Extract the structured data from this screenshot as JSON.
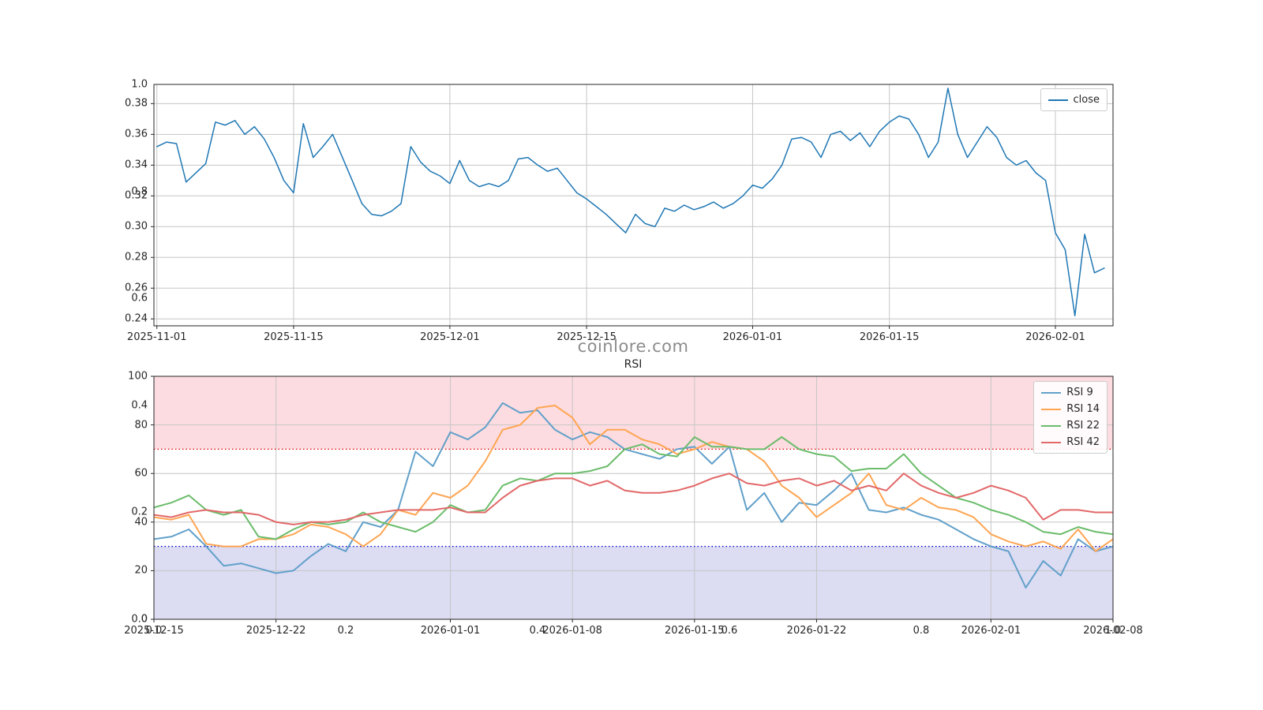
{
  "watermark": {
    "text": "coinlore.com"
  },
  "overlay_axis": {
    "y_ticks": [
      "1.0",
      "0.8",
      "0.6",
      "0.4",
      "0.2",
      "0.0"
    ],
    "x_ticks": [
      "0.0",
      "0.2",
      "0.4",
      "0.6",
      "0.8",
      "1.0"
    ]
  },
  "chart_data": [
    {
      "type": "line",
      "title": "",
      "xlabel": "",
      "ylabel": "",
      "grid": true,
      "legend_position": "upper right",
      "xlim": [
        -0.3,
        97.9
      ],
      "ylim": [
        0.2355,
        0.3925
      ],
      "x_tick_positions": [
        0,
        14,
        30,
        44,
        61,
        75,
        92
      ],
      "x_tick_labels": [
        "2025-11-01",
        "2025-11-15",
        "2025-12-01",
        "2025-12-15",
        "2026-01-01",
        "2026-01-15",
        "2026-02-01"
      ],
      "y_ticks": [
        0.24,
        0.26,
        0.28,
        0.3,
        0.32,
        0.34,
        0.36,
        0.38
      ],
      "y_tick_labels": [
        "0.24",
        "0.26",
        "0.28",
        "0.30",
        "0.32",
        "0.34",
        "0.36",
        "0.38"
      ],
      "series": [
        {
          "name": "close",
          "color": "#1f77b4",
          "width": 1.5,
          "values": [
            0.352,
            0.355,
            0.354,
            0.329,
            0.335,
            0.341,
            0.368,
            0.366,
            0.369,
            0.36,
            0.365,
            0.357,
            0.345,
            0.33,
            0.322,
            0.367,
            0.345,
            0.352,
            0.36,
            0.345,
            0.33,
            0.315,
            0.308,
            0.307,
            0.31,
            0.315,
            0.352,
            0.342,
            0.336,
            0.333,
            0.328,
            0.343,
            0.33,
            0.326,
            0.328,
            0.326,
            0.33,
            0.344,
            0.345,
            0.34,
            0.336,
            0.338,
            0.33,
            0.322,
            0.318,
            0.313,
            0.308,
            0.302,
            0.296,
            0.308,
            0.302,
            0.3,
            0.312,
            0.31,
            0.314,
            0.311,
            0.313,
            0.316,
            0.312,
            0.315,
            0.32,
            0.327,
            0.325,
            0.331,
            0.34,
            0.357,
            0.358,
            0.355,
            0.345,
            0.36,
            0.362,
            0.356,
            0.361,
            0.352,
            0.362,
            0.368,
            0.372,
            0.37,
            0.36,
            0.345,
            0.355,
            0.39,
            0.36,
            0.345,
            0.355,
            0.365,
            0.358,
            0.345,
            0.34,
            0.343,
            0.335,
            0.33,
            0.296,
            0.285,
            0.242,
            0.295,
            0.27,
            0.273
          ]
        }
      ]
    },
    {
      "type": "line",
      "title": "RSI",
      "xlabel": "",
      "ylabel": "",
      "grid": true,
      "legend_position": "upper right",
      "xlim": [
        0,
        55
      ],
      "ylim": [
        0,
        100
      ],
      "x_tick_positions": [
        0,
        7,
        17,
        24,
        31,
        38,
        48,
        55
      ],
      "x_tick_labels": [
        "2025-12-15",
        "2025-12-22",
        "2026-01-01",
        "2026-01-08",
        "2026-01-15",
        "2026-01-22",
        "2026-02-01",
        "2026-02-08"
      ],
      "y_ticks": [
        0,
        20,
        40,
        60,
        80,
        100
      ],
      "y_tick_labels": [
        "0",
        "20",
        "40",
        "60",
        "80",
        "100"
      ],
      "bands": [
        {
          "name": "overbought-band",
          "from": 70,
          "to": 100,
          "color": "#fcdce0"
        },
        {
          "name": "oversold-band",
          "from": 0,
          "to": 30,
          "color": "#dcdcf3"
        }
      ],
      "hlines": [
        {
          "name": "overbought-threshold-line",
          "y": 70,
          "color": "#dd0000"
        },
        {
          "name": "oversold-threshold-line",
          "y": 30,
          "color": "#0000cc"
        }
      ],
      "series": [
        {
          "name": "RSI 9",
          "color": "#62a0ca",
          "width": 2,
          "values": [
            33,
            34,
            37,
            30,
            22,
            23,
            21,
            19,
            20,
            26,
            31,
            28,
            40,
            38,
            45,
            69,
            63,
            77,
            74,
            79,
            89,
            85,
            86,
            78,
            74,
            77,
            75,
            70,
            68,
            66,
            70,
            71,
            64,
            71,
            45,
            52,
            40,
            48,
            47,
            53,
            60,
            45,
            44,
            46,
            43,
            41,
            37,
            33,
            30,
            28,
            13,
            24,
            18,
            33,
            28,
            30
          ]
        },
        {
          "name": "RSI 14",
          "color": "#ffa552",
          "width": 2,
          "values": [
            42,
            41,
            43,
            31,
            30,
            30,
            33,
            33,
            35,
            39,
            38,
            35,
            30,
            35,
            45,
            43,
            52,
            50,
            55,
            65,
            78,
            80,
            87,
            88,
            83,
            72,
            78,
            78,
            74,
            72,
            68,
            70,
            73,
            71,
            70,
            65,
            55,
            50,
            42,
            47,
            52,
            60,
            47,
            45,
            50,
            46,
            45,
            42,
            35,
            32,
            30,
            32,
            29,
            37,
            28,
            33
          ]
        },
        {
          "name": "RSI 22",
          "color": "#6bbc6b",
          "width": 2,
          "values": [
            46,
            48,
            51,
            45,
            43,
            45,
            34,
            33,
            37,
            40,
            39,
            40,
            44,
            40,
            38,
            36,
            40,
            47,
            44,
            45,
            55,
            58,
            57,
            60,
            60,
            61,
            63,
            70,
            72,
            68,
            67,
            75,
            71,
            71,
            70,
            70,
            75,
            70,
            68,
            67,
            61,
            62,
            62,
            68,
            60,
            55,
            50,
            48,
            45,
            43,
            40,
            36,
            35,
            38,
            36,
            35
          ]
        },
        {
          "name": "RSI 42",
          "color": "#e26869",
          "width": 2,
          "values": [
            43,
            42,
            44,
            45,
            44,
            44,
            43,
            40,
            39,
            40,
            40,
            41,
            43,
            44,
            45,
            45,
            45,
            46,
            44,
            44,
            50,
            55,
            57,
            58,
            58,
            55,
            57,
            53,
            52,
            52,
            53,
            55,
            58,
            60,
            56,
            55,
            57,
            58,
            55,
            57,
            53,
            55,
            53,
            60,
            55,
            52,
            50,
            52,
            55,
            53,
            50,
            41,
            45,
            45,
            44,
            44
          ]
        }
      ]
    }
  ]
}
